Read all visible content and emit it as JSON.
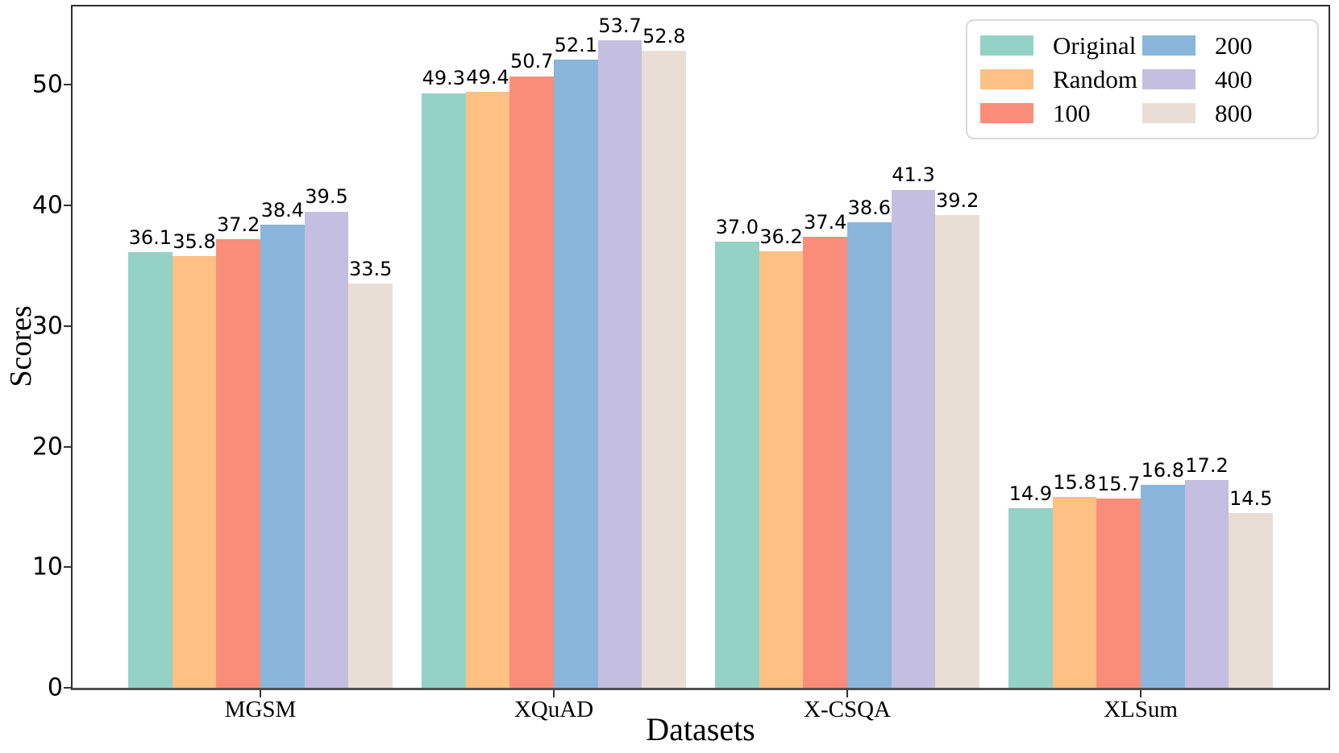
{
  "chart_data": {
    "type": "bar",
    "title": "",
    "xlabel": "Datasets",
    "ylabel": "Scores",
    "categories": [
      "MGSM",
      "XQuAD",
      "X-CSQA",
      "XLSum"
    ],
    "series": [
      {
        "name": "Original",
        "color": "#94D2C5",
        "values": [
          36.1,
          49.3,
          37.0,
          14.9
        ]
      },
      {
        "name": "Random",
        "color": "#FFC083",
        "values": [
          35.8,
          49.4,
          36.2,
          15.8
        ]
      },
      {
        "name": "100",
        "color": "#FA8D79",
        "values": [
          37.2,
          50.7,
          37.4,
          15.7
        ]
      },
      {
        "name": "200",
        "color": "#89B6DA",
        "values": [
          38.4,
          52.1,
          38.6,
          16.8
        ]
      },
      {
        "name": "400",
        "color": "#C4BFE0",
        "values": [
          39.5,
          53.7,
          41.3,
          17.2
        ]
      },
      {
        "name": "800",
        "color": "#E9DED6",
        "values": [
          33.5,
          52.8,
          39.2,
          14.5
        ]
      }
    ],
    "y_ticks": [
      0,
      10,
      20,
      30,
      40,
      50
    ],
    "ylim": [
      0,
      56.5
    ],
    "grid": false,
    "value_label_decimals": 1,
    "legend_position": "upper right",
    "legend_columns": 2
  }
}
